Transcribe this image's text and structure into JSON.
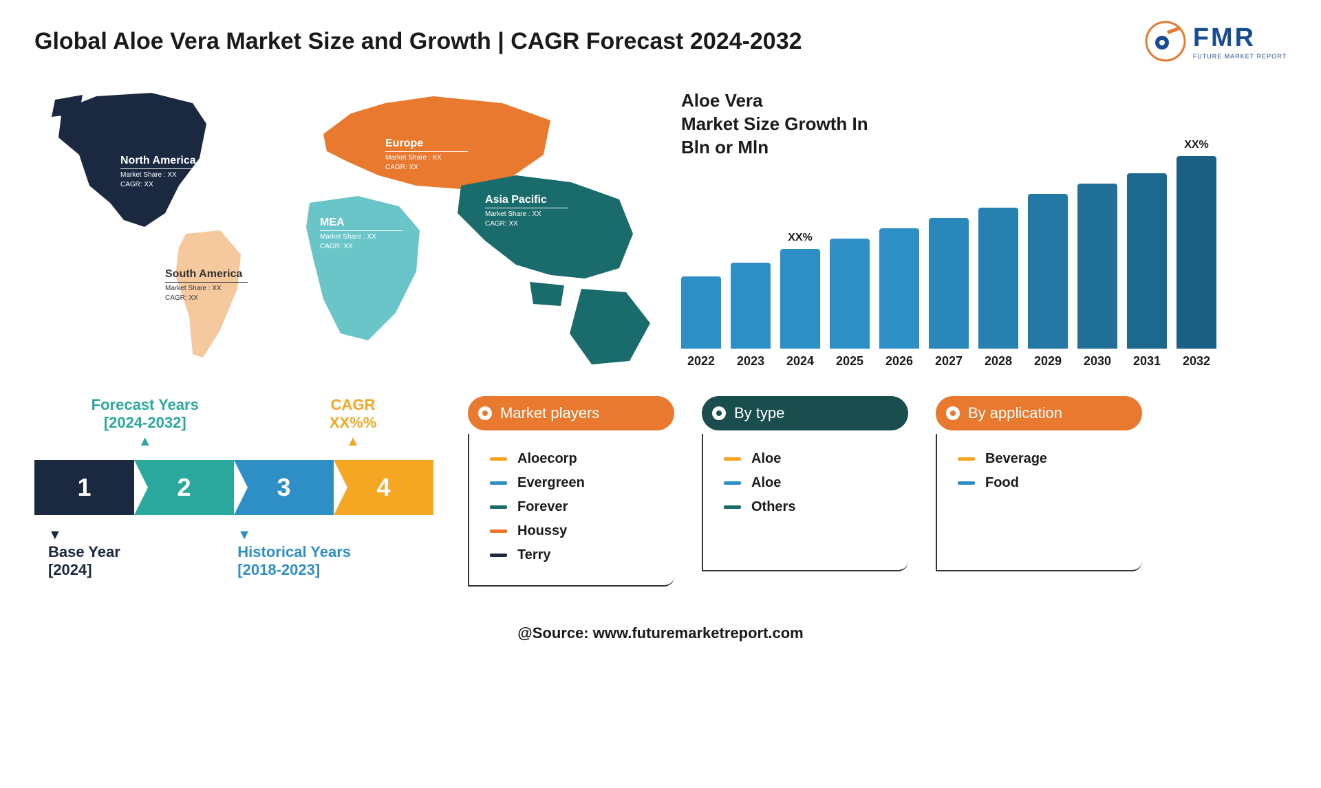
{
  "header": {
    "title": "Global Aloe Vera Market Size and Growth | CAGR Forecast 2024-2032",
    "logo_main": "FMR",
    "logo_sub": "FUTURE MARKET REPORT"
  },
  "map": {
    "regions": [
      {
        "name": "North America",
        "share": "Market Share : XX",
        "cagr": "CAGR: XX",
        "color": "#1a2840"
      },
      {
        "name": "South America",
        "share": "Market Share : XX",
        "cagr": "CAGR: XX",
        "color": "#f5c89e"
      },
      {
        "name": "Europe",
        "share": "Market Share : XX",
        "cagr": "CAGR: XX",
        "color": "#e8792e"
      },
      {
        "name": "MEA",
        "share": "Market Share : XX",
        "cagr": "CAGR: XX",
        "color": "#6ac5c8"
      },
      {
        "name": "Asia Pacific",
        "share": "Market Share : XX",
        "cagr": "CAGR: XX",
        "color": "#1a6b6b"
      }
    ]
  },
  "chart": {
    "title_line1": "Aloe Vera",
    "title_line2": "Market Size Growth In",
    "title_line3": "Bln or Mln",
    "years": [
      "2022",
      "2023",
      "2024",
      "2025",
      "2026",
      "2027",
      "2028",
      "2029",
      "2030",
      "2031",
      "2032"
    ],
    "values": [
      105,
      125,
      145,
      160,
      175,
      190,
      205,
      225,
      240,
      255,
      280
    ],
    "colors": [
      "#2e8fc7",
      "#2e8fc7",
      "#2e8fc7",
      "#2e8fc7",
      "#2e8fc7",
      "#2987bb",
      "#2680b0",
      "#2378a5",
      "#20709a",
      "#1d688f",
      "#1a6085"
    ],
    "label_2024": "XX%",
    "label_2032": "XX%"
  },
  "timeline": {
    "forecast_title": "Forecast Years",
    "forecast_range": "[2024-2032]",
    "forecast_color": "#2ba89e",
    "cagr_title": "CAGR",
    "cagr_value": "XX%%",
    "cagr_color": "#f5a623",
    "base_title": "Base Year",
    "base_range": "[2024]",
    "base_color": "#1a2840",
    "hist_title": "Historical Years",
    "hist_range": "[2018-2023]",
    "hist_color": "#2e8fc7",
    "segments": [
      "1",
      "2",
      "3",
      "4"
    ]
  },
  "categories": [
    {
      "header": "Market players",
      "header_bg": "#e8792e",
      "items": [
        {
          "label": "Aloecorp",
          "color": "#f5a623"
        },
        {
          "label": "Evergreen",
          "color": "#2e8fc7"
        },
        {
          "label": "Forever",
          "color": "#1a6b6b"
        },
        {
          "label": "Houssy",
          "color": "#e8792e"
        },
        {
          "label": "Terry",
          "color": "#1a2840"
        }
      ]
    },
    {
      "header": "By type",
      "header_bg": "#1a4d4d",
      "items": [
        {
          "label": "Aloe",
          "color": "#f5a623"
        },
        {
          "label": "Aloe",
          "color": "#2e8fc7"
        },
        {
          "label": "Others",
          "color": "#1a6b6b"
        }
      ]
    },
    {
      "header": "By application",
      "header_bg": "#e8792e",
      "items": [
        {
          "label": "Beverage",
          "color": "#f5a623"
        },
        {
          "label": "Food",
          "color": "#2e8fc7"
        }
      ]
    }
  ],
  "source": "@Source: www.futuremarketreport.com"
}
